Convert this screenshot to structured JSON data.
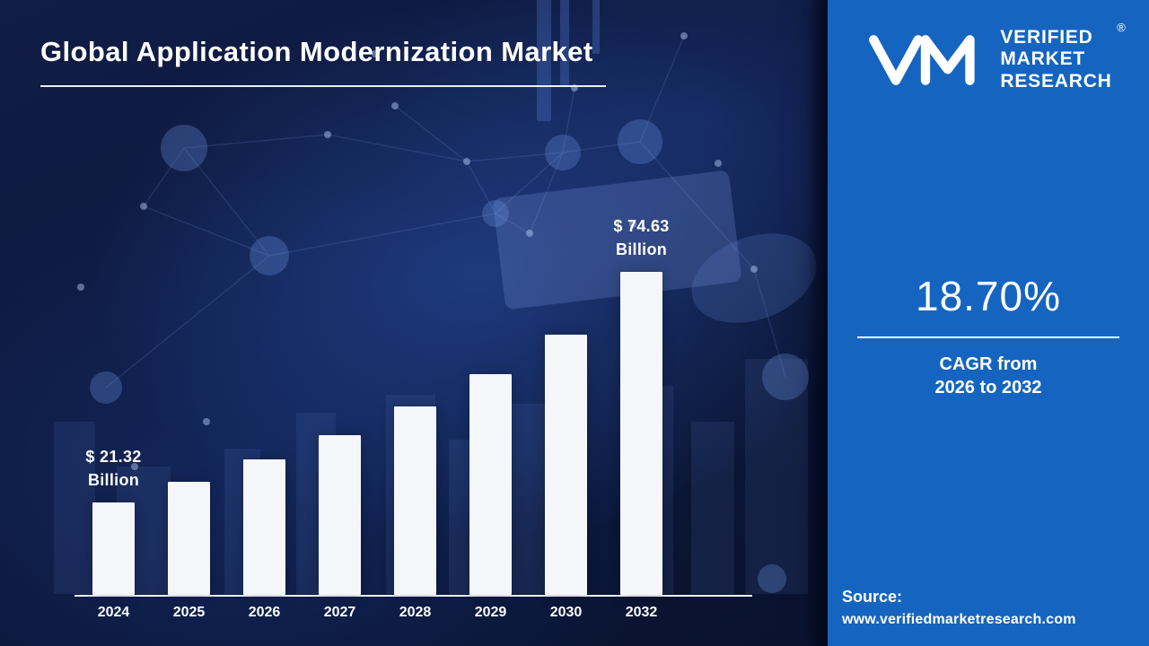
{
  "title": "Global Application Modernization Market",
  "chart_data": {
    "type": "bar",
    "title": "Global Application Modernization Market",
    "categories": [
      "2024",
      "2025",
      "2026",
      "2027",
      "2028",
      "2029",
      "2030",
      "2032"
    ],
    "values": [
      21.32,
      26.1,
      31.2,
      37.0,
      43.5,
      51.0,
      60.2,
      74.63
    ],
    "unit": "USD Billion",
    "xlabel": "",
    "ylabel": "",
    "ylim": [
      0,
      80
    ],
    "bar_color": "#f4f6fa",
    "grid": "off",
    "legend": "none",
    "annotations": [
      {
        "index": 0,
        "line1": "$ 21.32",
        "line2": "Billion"
      },
      {
        "index": 7,
        "line1": "$ 74.63",
        "line2": "Billion"
      }
    ]
  },
  "panel": {
    "logo": {
      "monogram": "VM",
      "lines": [
        "VERIFIED",
        "MARKET",
        "RESEARCH"
      ],
      "registered_mark": "®"
    },
    "cagr_value": "18.70%",
    "cagr_line1": "CAGR from",
    "cagr_line2": "2026 to 2032",
    "source_label": "Source:",
    "source_url": "www.verifiedmarketresearch.com"
  },
  "colors": {
    "panel_blue": "#1565c0",
    "background_navy": "#0c173a",
    "bar_white": "#f4f6fa",
    "text_white": "#ffffff"
  }
}
